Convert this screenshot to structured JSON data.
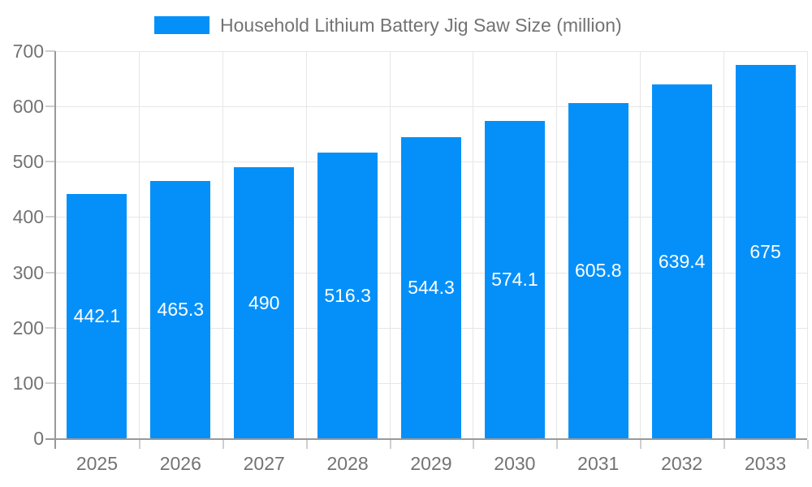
{
  "chart_data": {
    "type": "bar",
    "title": "Household Lithium Battery Jig Saw Size (million)",
    "categories": [
      "2025",
      "2026",
      "2027",
      "2028",
      "2029",
      "2030",
      "2031",
      "2032",
      "2033"
    ],
    "values": [
      442.1,
      465.3,
      490,
      516.3,
      544.3,
      574.1,
      605.8,
      639.4,
      675
    ],
    "xlabel": "",
    "ylabel": "",
    "ylim": [
      0,
      700
    ],
    "ytick_step": 100,
    "yticks": [
      "0",
      "100",
      "200",
      "300",
      "400",
      "500",
      "600",
      "700"
    ],
    "grid": true,
    "legend_position": "top",
    "colors": {
      "bar": "#0590f9",
      "bar_label": "#ffffff",
      "axis_text": "#737373",
      "axis_line": "#999999",
      "grid": "#e6e6e6",
      "tick": "#cfcfcf",
      "background": "#ffffff"
    }
  }
}
